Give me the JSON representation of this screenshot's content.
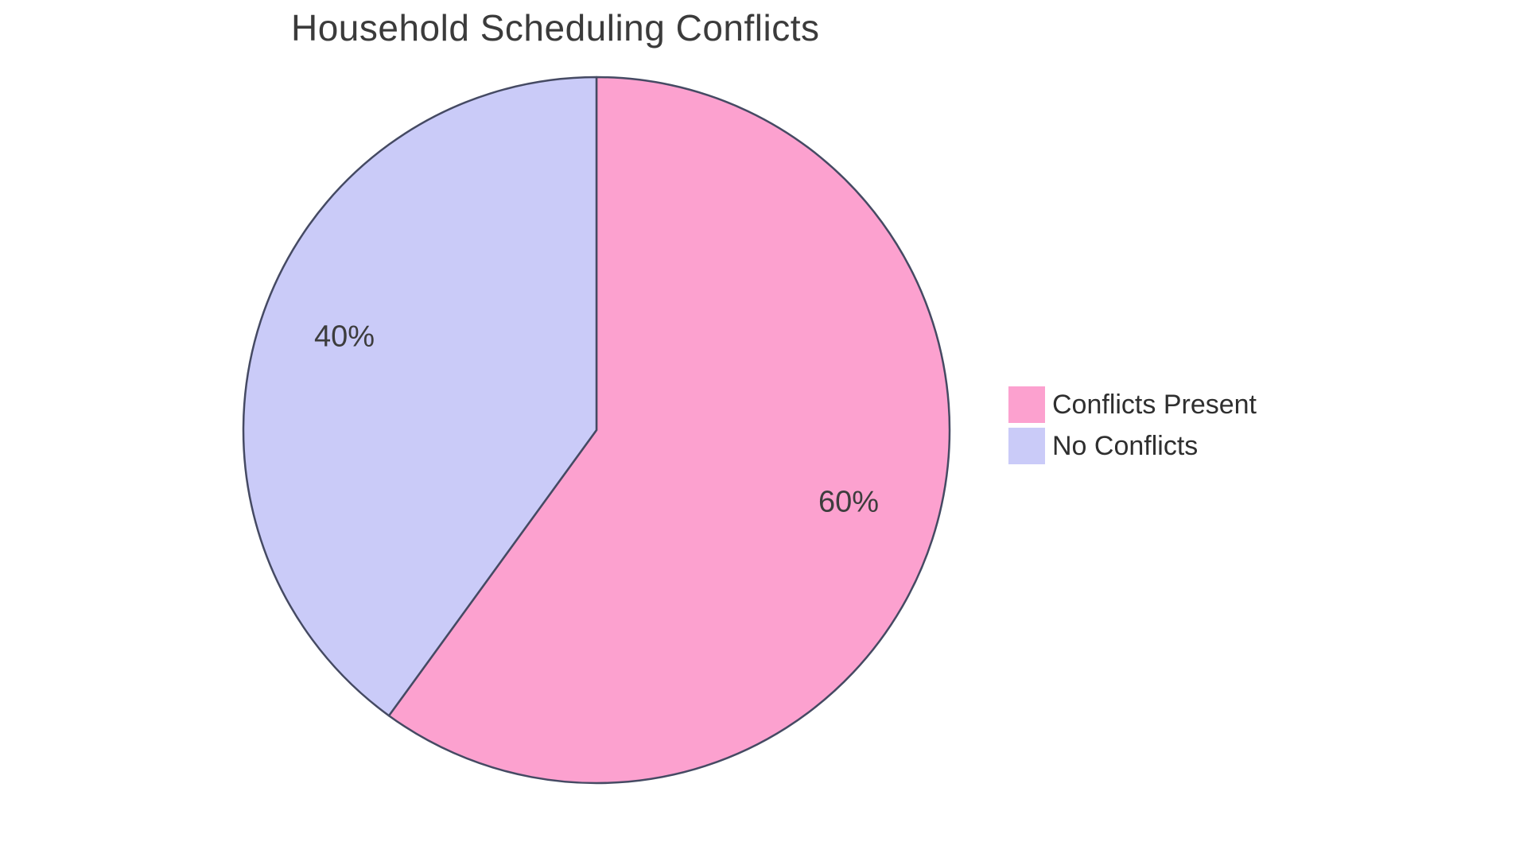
{
  "chart_data": {
    "type": "pie",
    "title": "Household Scheduling Conflicts",
    "labels": [
      "Conflicts Present",
      "No Conflicts"
    ],
    "values": [
      60,
      40
    ],
    "slice_labels": [
      "60%",
      "40%"
    ],
    "colors": [
      "#FCA1CF",
      "#CACBF8"
    ],
    "stroke_color": "#454A63",
    "stroke_width": 2.5,
    "start_angle_deg": 0,
    "direction": "clockwise",
    "legend_position": "right",
    "background": "#ffffff"
  },
  "legend": {
    "items": [
      {
        "label": "Conflicts Present",
        "color": "#FCA1CF"
      },
      {
        "label": "No Conflicts",
        "color": "#CACBF8"
      }
    ]
  }
}
